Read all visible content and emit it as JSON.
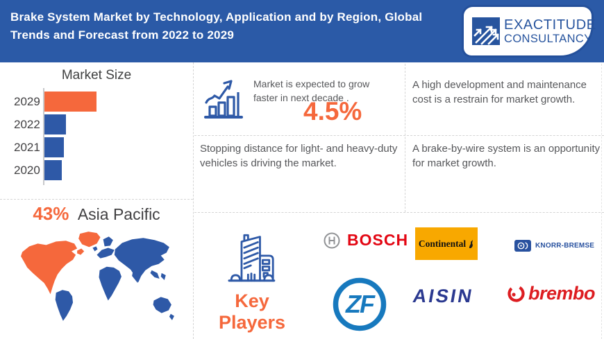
{
  "header": {
    "title": "Brake System  Market by Technology, Application and by Region, Global Trends and Forecast from 2022 to 2029",
    "logo": {
      "line1": "EXACTITUDE",
      "line2": "CONSULTANCY",
      "icon": "arrows-up-right-icon"
    }
  },
  "chart_data": {
    "type": "bar",
    "orientation": "horizontal",
    "title": "Market Size",
    "categories": [
      "2029",
      "2022",
      "2021",
      "2020"
    ],
    "values": [
      75,
      31,
      28,
      25
    ],
    "value_unit": "relative bar length in px (no numeric axis shown)",
    "bar_colors": [
      "#F5683C",
      "#2E59A7",
      "#2E59A7",
      "#2E59A7"
    ],
    "xlabel": "",
    "ylabel": "",
    "grid": false,
    "legend": false,
    "note": "2029 forecast bar highlighted orange, history bars blue"
  },
  "region_highlight": {
    "percent": "43%",
    "region": "Asia Pacific",
    "map_colors": {
      "north_america_greenland": "#F5683C",
      "rest_of_world": "#2E59A7"
    }
  },
  "insights": {
    "growth_note": "Market is expected to grow faster in next decade .",
    "cagr": "4.5%",
    "restraint": "A high development and maintenance cost is a restrain for market growth.",
    "driver": "Stopping distance for light- and heavy-duty vehicles is driving the market.",
    "opportunity": "A brake-by-wire system is an opportunity for market growth."
  },
  "key_players": {
    "label": "Key Players",
    "companies": [
      {
        "name": "BOSCH",
        "color": "#E30613"
      },
      {
        "name": "Continental",
        "color": "#111111",
        "bg": "#F8A800"
      },
      {
        "name": "KNORR-BREMSE",
        "color": "#28519F"
      },
      {
        "name": "ZF",
        "color": "#1779BE"
      },
      {
        "name": "AISIN",
        "color": "#2B3990"
      },
      {
        "name": "brembo",
        "color": "#DD1D21"
      }
    ]
  },
  "colors": {
    "header_bg": "#2B5AA7",
    "accent_orange": "#F5683C",
    "brand_blue": "#2E59A7",
    "text_gray": "#56575A",
    "dashed_border": "#D4D4D4"
  }
}
